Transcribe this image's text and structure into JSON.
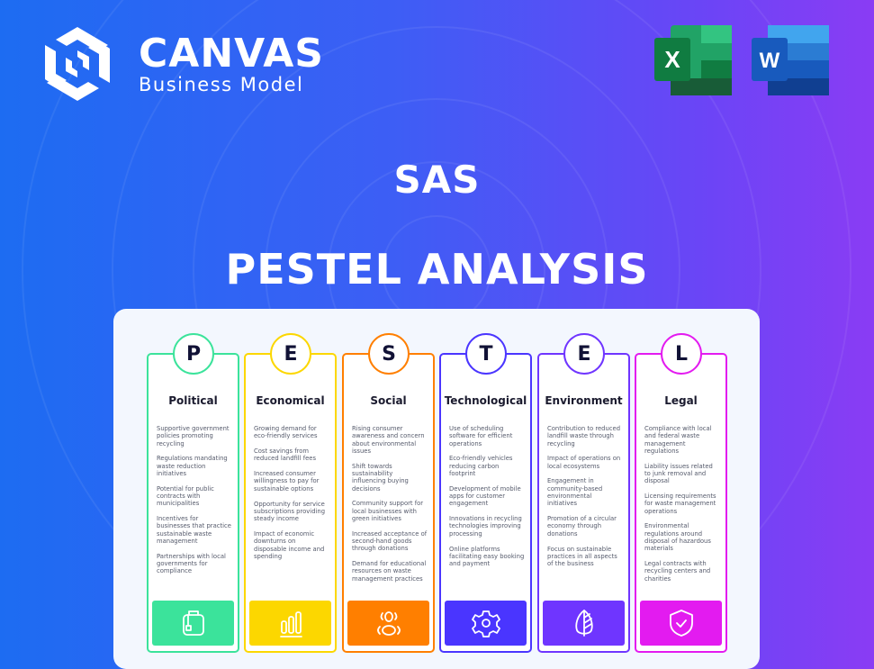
{
  "brand": {
    "name": "CANVAS",
    "tagline": "Business Model"
  },
  "apps": [
    {
      "name": "excel-icon",
      "letter": "X",
      "color": "#1f7a45"
    },
    {
      "name": "word-icon",
      "letter": "W",
      "color": "#2b5cc8"
    }
  ],
  "heading": {
    "company": "SAS",
    "subtitle": "PESTEL ANALYSIS"
  },
  "pestel": [
    {
      "letter": "P",
      "title": "Political",
      "color": "#3be39b",
      "icon": "briefcase-icon",
      "items": [
        "Supportive government policies promoting recycling",
        "Regulations mandating waste reduction initiatives",
        "Potential for public contracts with municipalities",
        "Incentives for businesses that practice sustainable waste management",
        "Partnerships with local governments for compliance"
      ]
    },
    {
      "letter": "E",
      "title": "Economical",
      "color": "#fcd700",
      "icon": "bar-chart-icon",
      "items": [
        "Growing demand for eco-friendly services",
        "Cost savings from reduced landfill fees",
        "Increased consumer willingness to pay for sustainable options",
        "Opportunity for service subscriptions providing steady income",
        "Impact of economic downturns on disposable income and spending"
      ]
    },
    {
      "letter": "S",
      "title": "Social",
      "color": "#ff7f00",
      "icon": "people-icon",
      "items": [
        "Rising consumer awareness and concern about environmental issues",
        "Shift towards sustainability influencing buying decisions",
        "Community support for local businesses with green initiatives",
        "Increased acceptance of second-hand goods through donations",
        "Demand for educational resources on waste management practices"
      ]
    },
    {
      "letter": "T",
      "title": "Technological",
      "color": "#4a35ff",
      "icon": "gear-icon",
      "items": [
        "Use of scheduling software for efficient operations",
        "Eco-friendly vehicles reducing carbon footprint",
        "Development of mobile apps for customer engagement",
        "Innovations in recycling technologies improving processing",
        "Online platforms facilitating easy booking and payment"
      ]
    },
    {
      "letter": "E",
      "title": "Environment",
      "color": "#6f35ff",
      "icon": "leaf-icon",
      "items": [
        "Contribution to reduced landfill waste through recycling",
        "Impact of operations on local ecosystems",
        "Engagement in community-based environmental initiatives",
        "Promotion of a circular economy through donations",
        "Focus on sustainable practices in all aspects of the business"
      ]
    },
    {
      "letter": "L",
      "title": "Legal",
      "color": "#e31bf0",
      "icon": "shield-check-icon",
      "items": [
        "Compliance with local and federal waste management regulations",
        "Liability issues related to junk removal and disposal",
        "Licensing requirements for waste management operations",
        "Environmental regulations around disposal of hazardous materials",
        "Legal contracts with recycling centers and charities"
      ]
    }
  ]
}
